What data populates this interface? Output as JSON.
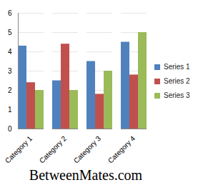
{
  "chart_data": {
    "type": "bar",
    "caption": "BetweenMates.com",
    "categories": [
      "Category 1",
      "Category 2",
      "Category 3",
      "Category 4"
    ],
    "series": [
      {
        "name": "Series 1",
        "color": "#4f81bd",
        "values": [
          4.3,
          2.5,
          3.5,
          4.5
        ]
      },
      {
        "name": "Series 2",
        "color": "#c0504d",
        "values": [
          2.4,
          4.4,
          1.8,
          2.8
        ]
      },
      {
        "name": "Series 3",
        "color": "#9bbb59",
        "values": [
          2,
          2,
          3,
          5
        ]
      }
    ],
    "ylim": [
      0,
      6
    ],
    "yticks": [
      0,
      1,
      2,
      3,
      4,
      5,
      6
    ],
    "grid": true,
    "legend": "right"
  }
}
